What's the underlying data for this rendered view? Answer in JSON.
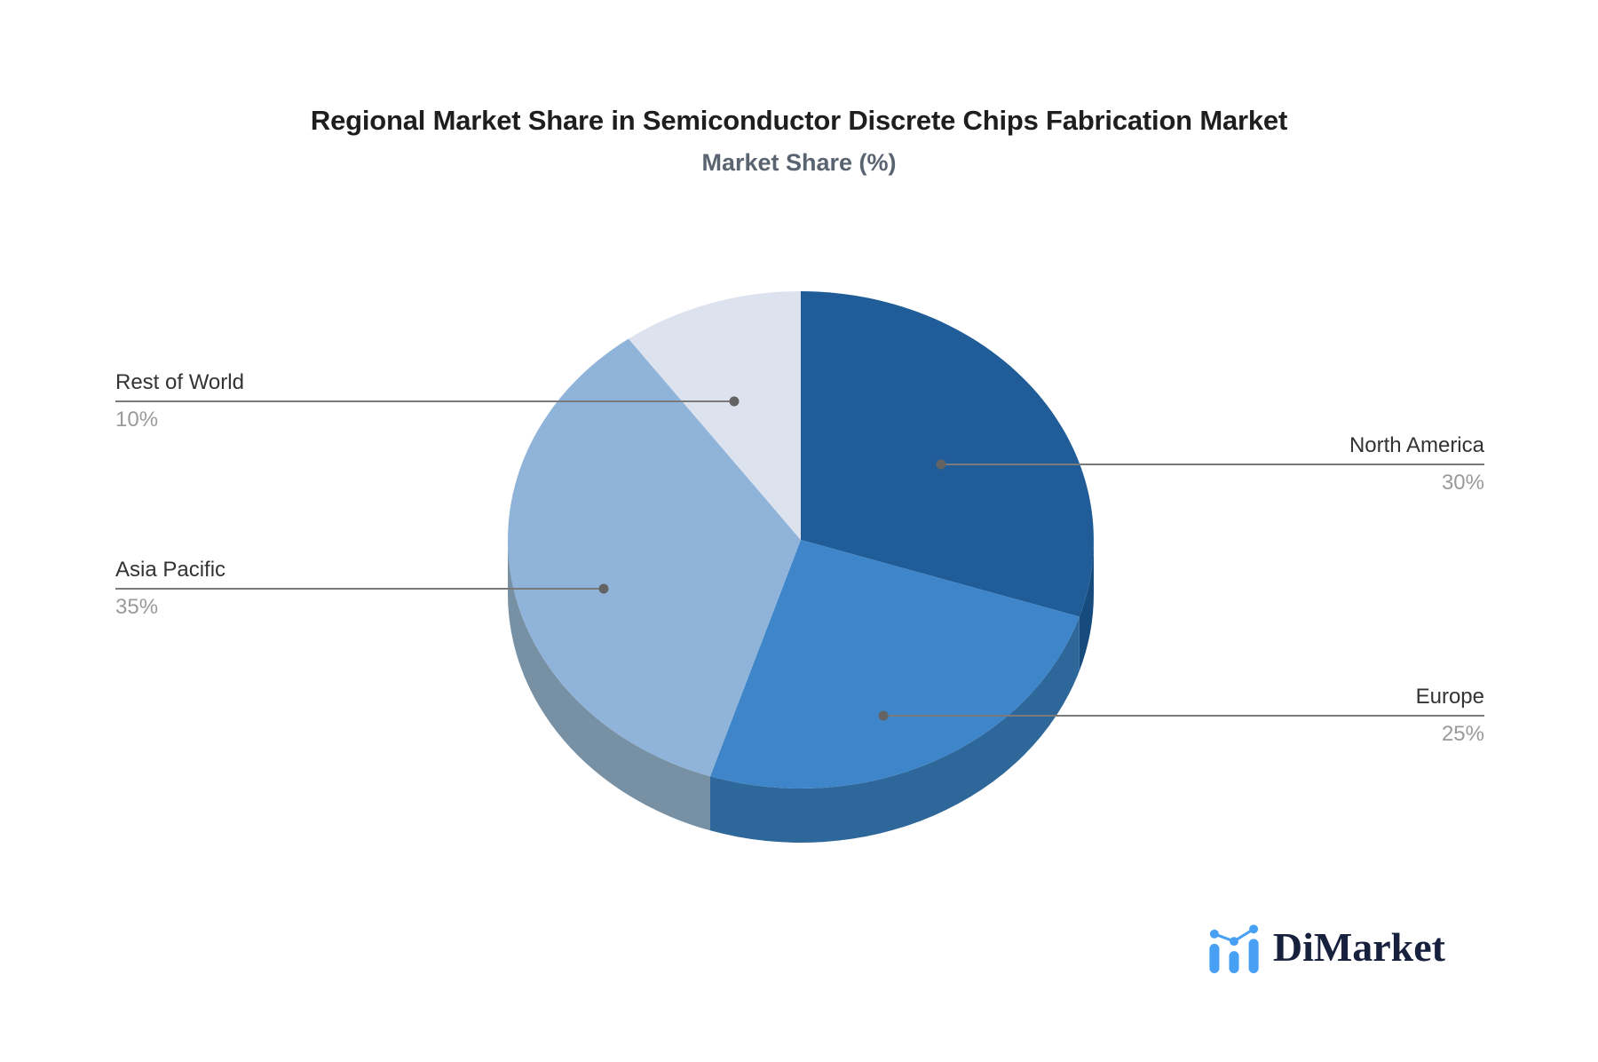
{
  "title": "Regional Market Share in Semiconductor Discrete Chips Fabrication Market",
  "subtitle": "Market Share (%)",
  "logo": {
    "text": "DiMarket"
  },
  "colors": {
    "background": "#ffffff",
    "title": "#1e1e1e",
    "subtitle": "#5a6470",
    "label_text": "#333333",
    "pct_text": "#9a9a9a",
    "leader_line": "#7a7a7a",
    "anchor_dot": "#636363",
    "logo_text": "#17203d",
    "logo_icon": "#47a0f4"
  },
  "chart_data": {
    "type": "pie",
    "title": "Regional Market Share in Semiconductor Discrete Chips Fabrication Market",
    "subtitle": "Market Share (%)",
    "unit": "%",
    "start_angle": "12-oclock",
    "direction": "clockwise",
    "effect": "3d-depth",
    "legend_position": "callout-labels",
    "slices": [
      {
        "label": "North America",
        "value": 30,
        "pct_label": "30%",
        "color": "#205d98",
        "side_color": "#174a7d",
        "label_side": "right"
      },
      {
        "label": "Europe",
        "value": 25,
        "pct_label": "25%",
        "color": "#3e86c9",
        "side_color": "#2e689b",
        "label_side": "right"
      },
      {
        "label": "Asia Pacific",
        "value": 35,
        "pct_label": "35%",
        "color": "#90b4d9",
        "side_color": "#7890a4",
        "label_side": "left"
      },
      {
        "label": "Rest of World",
        "value": 10,
        "pct_label": "10%",
        "color": "#dde3ee",
        "side_color": "#b9c4d4",
        "label_side": "left"
      }
    ]
  }
}
